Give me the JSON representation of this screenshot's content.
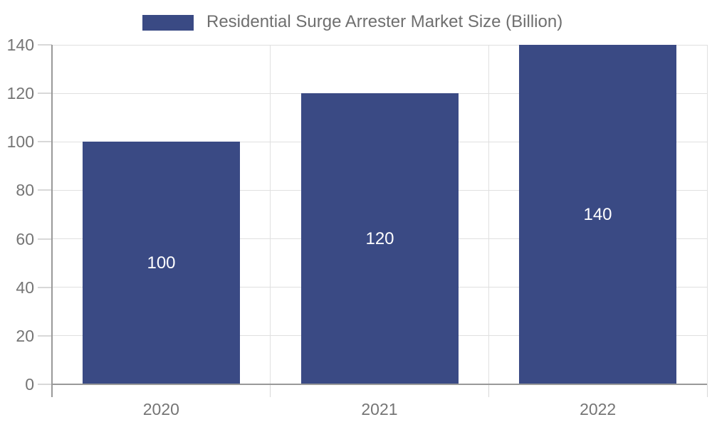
{
  "chart_data": {
    "type": "bar",
    "title": "Residential Surge Arrester Market Size (Billion)",
    "categories": [
      "2020",
      "2021",
      "2022"
    ],
    "series": [
      {
        "name": "Residential Surge Arrester Market Size (Billion)",
        "values": [
          100,
          120,
          140
        ]
      }
    ],
    "values": [
      100,
      120,
      140
    ],
    "bar_value_labels": [
      "100",
      "120",
      "140"
    ],
    "xlabel": "",
    "ylabel": "",
    "ylim": [
      0,
      140
    ],
    "ytick_step": 20,
    "ytick_labels": [
      "0",
      "20",
      "40",
      "60",
      "80",
      "100",
      "120",
      "140"
    ],
    "grid": true,
    "legend": {
      "position": "top-center",
      "label": "Residential Surge Arrester Market Size (Billion)"
    },
    "colors": {
      "bar_fill": "#3A4A84",
      "bar_label_text": "#FFFFFF",
      "axis_line": "#999999",
      "gridline": "#E0E0E0",
      "tick_mark": "#D8D8D8",
      "tick_label_text": "#757575",
      "legend_text": "#6F6F6F",
      "background": "#FFFFFF"
    }
  }
}
